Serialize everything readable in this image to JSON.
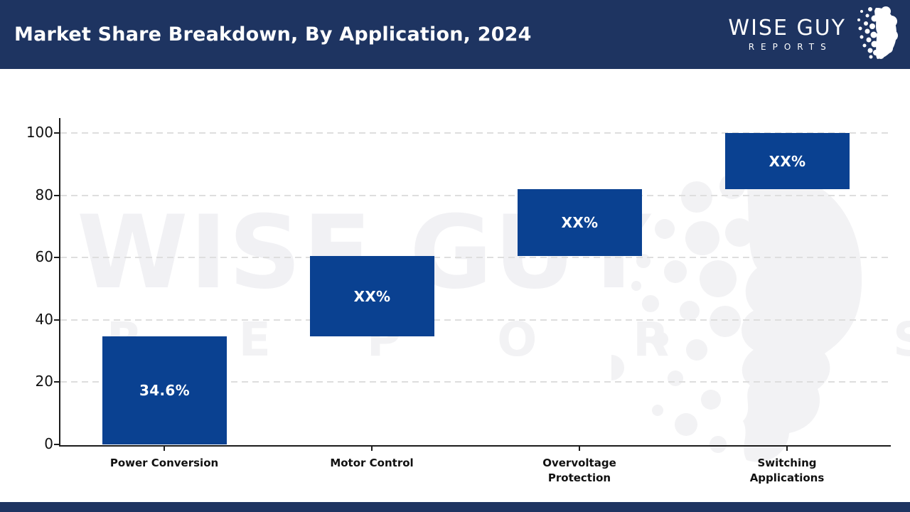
{
  "header": {
    "title": "Market Share Breakdown, By Application, 2024",
    "logo_line1": "WISE GUY",
    "logo_line2": "REPORTS"
  },
  "watermark": {
    "line1": "WISE GUY",
    "line2": "R E P O R T S"
  },
  "chart_data": {
    "type": "bar",
    "subtype": "waterfall",
    "title": "Market Share Breakdown, By Application, 2024",
    "categories": [
      "Power Conversion",
      "Motor Control",
      "Overvoltage Protection",
      "Switching Applications"
    ],
    "segments": [
      {
        "category": "Power Conversion",
        "from": 0,
        "to": 34.6,
        "label": "34.6%"
      },
      {
        "category": "Motor Control",
        "from": 34.6,
        "to": 60.5,
        "label": "XX%"
      },
      {
        "category": "Overvoltage Protection",
        "from": 60.5,
        "to": 82,
        "label": "XX%"
      },
      {
        "category": "Switching Applications",
        "from": 82,
        "to": 100,
        "label": "XX%"
      }
    ],
    "y_ticks": [
      0,
      20,
      40,
      60,
      80,
      100
    ],
    "ylim": [
      0,
      105
    ],
    "xlabel": "",
    "ylabel": "",
    "grid": "horizontal-dashed",
    "legend": "none",
    "bar_color": "#0a4191",
    "bar_label_color": "#ffffff",
    "axis_color": "#1c1c1c",
    "grid_color": "#dedede"
  },
  "colors": {
    "header_bg": "#1e3461",
    "footer_bg": "#1e3461",
    "title_text": "#ffffff",
    "watermark": "#f1f1f4",
    "background": "#ffffff"
  }
}
